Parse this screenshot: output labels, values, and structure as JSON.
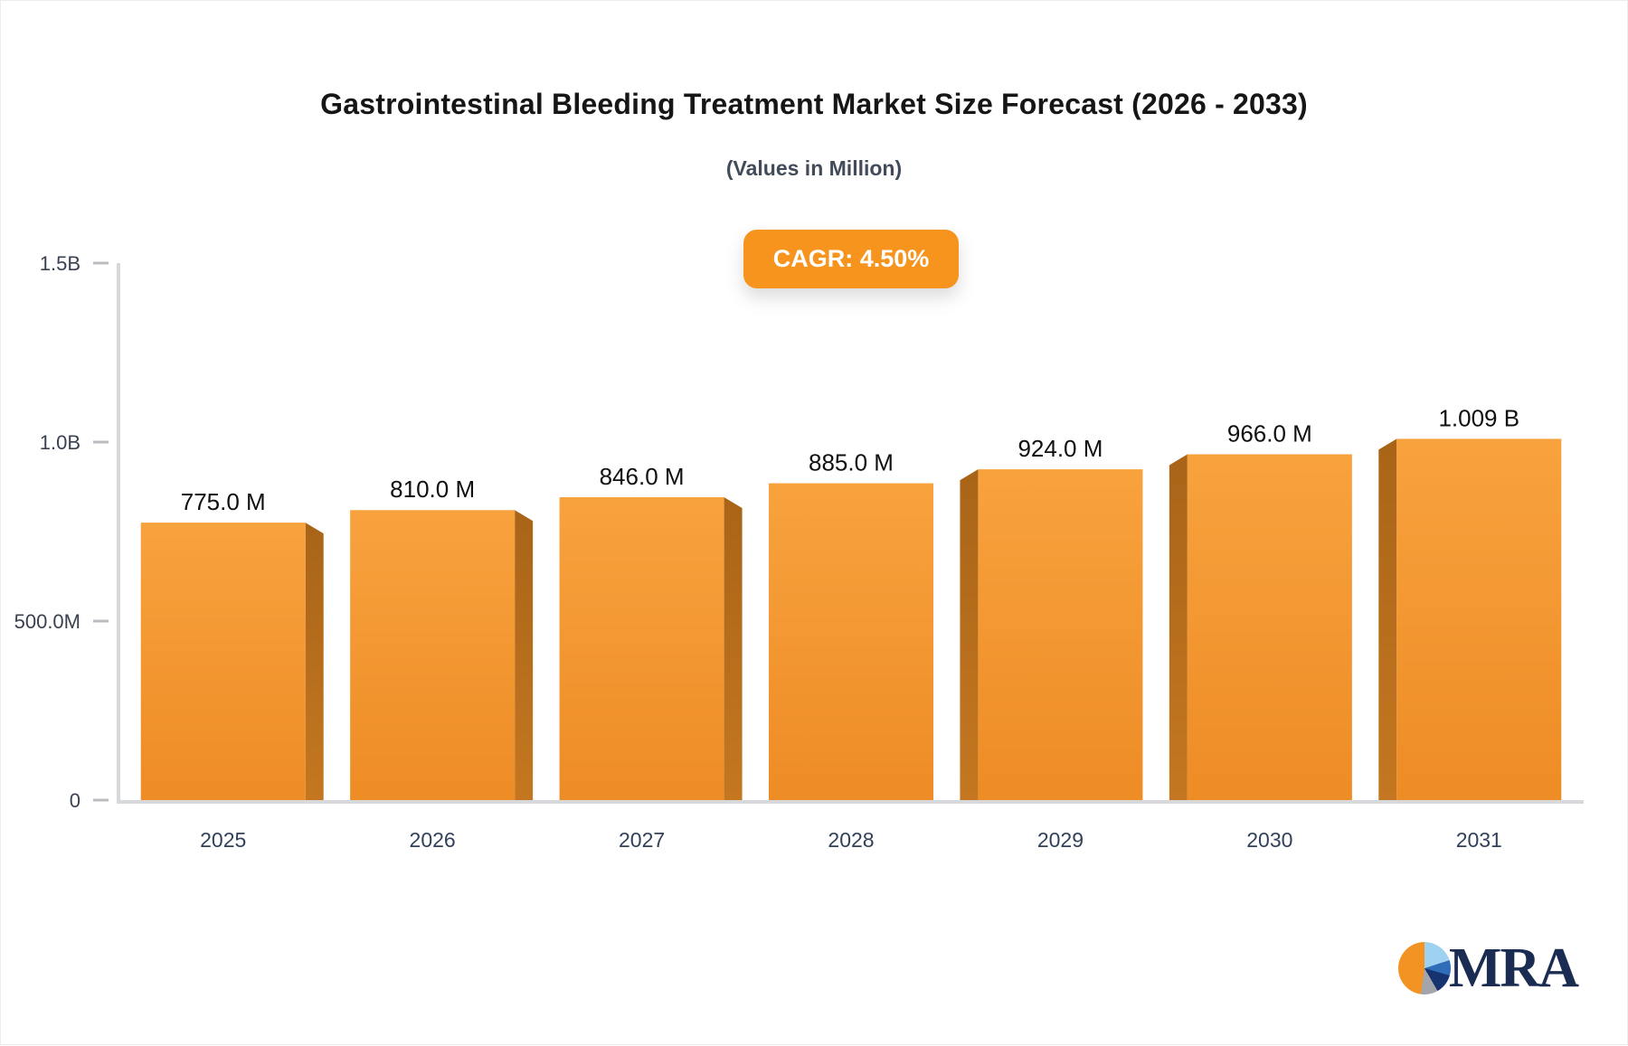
{
  "chart_data": {
    "type": "bar",
    "title": "Gastrointestinal Bleeding Treatment Market Size Forecast (2026 - 2033)",
    "subtitle": "(Values in Million)",
    "categories": [
      "2025",
      "2026",
      "2027",
      "2028",
      "2029",
      "2030",
      "2031"
    ],
    "values": [
      775,
      810,
      846,
      885,
      924,
      966,
      1009
    ],
    "value_labels": [
      "775.0 M",
      "810.0 M",
      "846.0 M",
      "885.0 M",
      "924.0 M",
      "966.0 M",
      "1.009 B"
    ],
    "unit_note": "values in millions",
    "ylim": [
      0,
      1500
    ],
    "yticks": [
      {
        "label": "1.5B",
        "value": 1500
      },
      {
        "label": "1.0B",
        "value": 1000
      },
      {
        "label": "500.0M",
        "value": 500
      },
      {
        "label": "0",
        "value": 0
      }
    ],
    "xlabel": "",
    "ylabel": "",
    "grid": false,
    "legend": false,
    "style": "3d-column"
  },
  "badge": {
    "label": "CAGR: 4.50%"
  },
  "logo": {
    "text": "MRA"
  },
  "colors": {
    "accent_orange": "#f6941e",
    "bar_face_top": "#f8a23e",
    "bar_face_bottom": "#ee8c25",
    "bar_side_top": "#a96418",
    "bar_side_bottom": "#c47720",
    "axis_line": "#d6d8dc",
    "tick_dash": "#b9bdc2",
    "ytick_text": "#3a4150",
    "xtick_text": "#31415a",
    "value_text": "#101010",
    "title_text": "#161616",
    "subtitle_text": "#414b5a",
    "logo_navy": "#1b2c52"
  }
}
